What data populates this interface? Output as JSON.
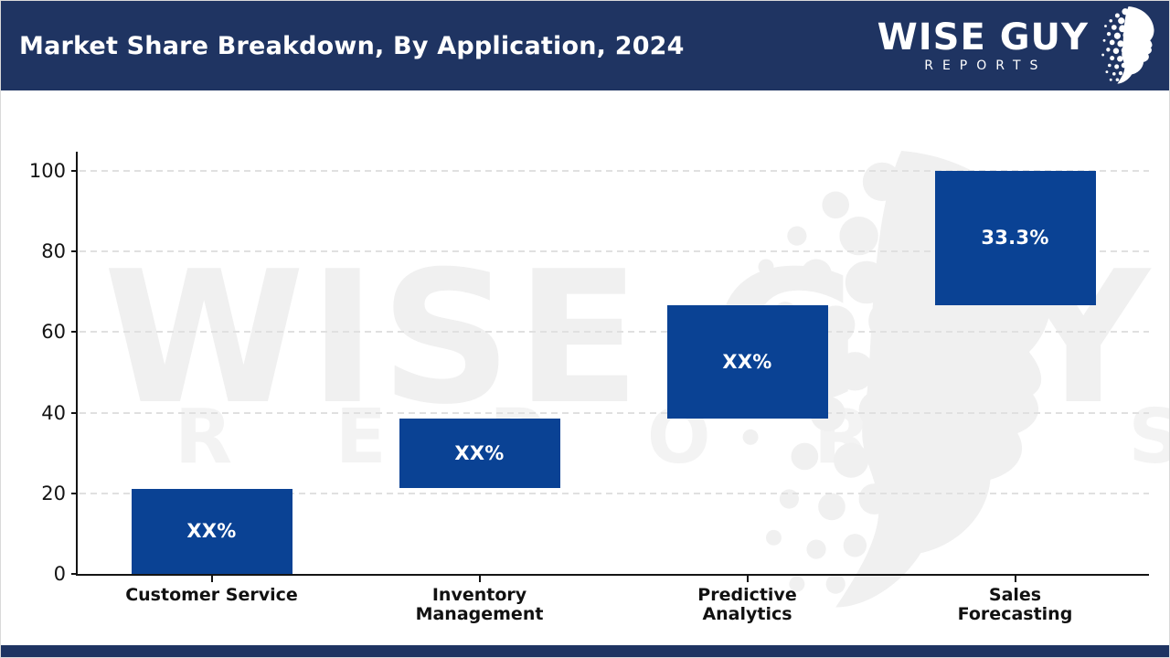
{
  "header": {
    "title": "Market Share Breakdown, By Application, 2024",
    "logo": {
      "line1": "WISE GUY",
      "line2": "REPORTS"
    }
  },
  "watermark": {
    "line1": "WISE GUY",
    "line2": "R E P O R T S"
  },
  "chart_data": {
    "type": "bar",
    "subtype": "floating-waterfall",
    "title": "Market Share Breakdown, By Application, 2024",
    "categories": [
      "Customer Service",
      "Inventory\nManagement",
      "Predictive\nAnalytics",
      "Sales Forecasting"
    ],
    "segments": [
      {
        "category": "Customer Service",
        "start": 0,
        "end": 21.2,
        "label": "XX%"
      },
      {
        "category": "Inventory Management",
        "start": 21.2,
        "end": 38.6,
        "label": "XX%"
      },
      {
        "category": "Predictive Analytics",
        "start": 38.6,
        "end": 66.7,
        "label": "XX%"
      },
      {
        "category": "Sales Forecasting",
        "start": 66.7,
        "end": 100,
        "label": "33.3%"
      }
    ],
    "ylim": [
      0,
      100
    ],
    "yticks": [
      0,
      20,
      40,
      60,
      80,
      100
    ],
    "grid": {
      "horizontal": true,
      "style": "dashed"
    },
    "legend": "none",
    "bar_color": "#0A4294"
  },
  "colors": {
    "header_bg": "#1F3462",
    "footer_bg": "#1F3462",
    "bar": "#0A4294",
    "grid": "#E0E0E0",
    "axis": "#141414",
    "watermark": "#F0F0F0",
    "watermark_light": "#F3F3F3"
  }
}
